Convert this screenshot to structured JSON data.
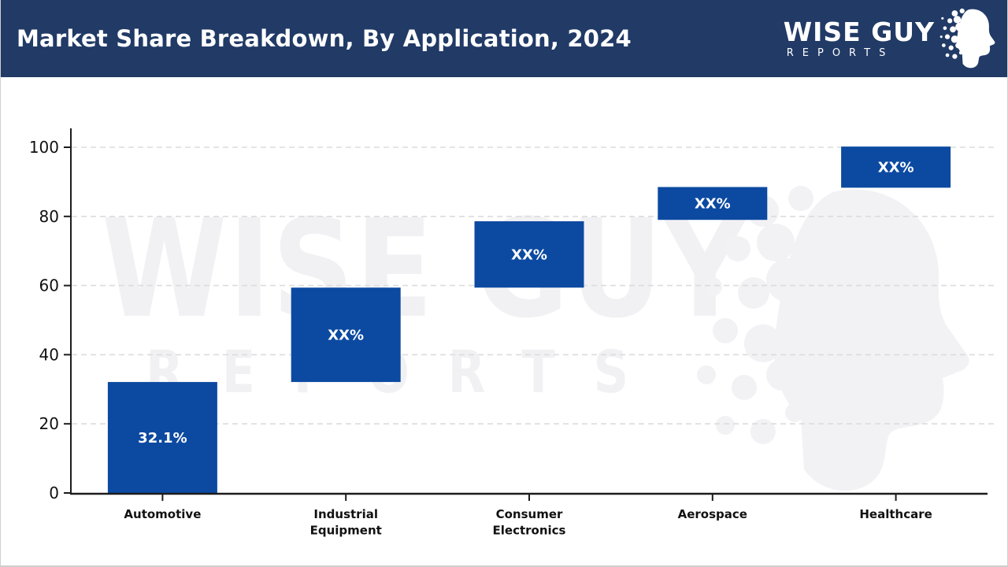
{
  "header": {
    "title": "Market Share Breakdown, By Application, 2024",
    "bg_color": "#213a66",
    "logo": {
      "line1": "WISE GUY",
      "line2": "REPORTS"
    }
  },
  "watermark": {
    "line1": "WISE GUY",
    "line2": "REPORTS"
  },
  "chart_data": {
    "type": "bar",
    "subtype": "waterfall",
    "title": "Market Share Breakdown, By Application, 2024",
    "xlabel": "",
    "ylabel": "",
    "categories": [
      "Automotive",
      "Industrial Equipment",
      "Consumer Electronics",
      "Aerospace",
      "Healthcare"
    ],
    "segments": [
      {
        "category": "Automotive",
        "start": 0,
        "end": 32.1,
        "display": "32.1%"
      },
      {
        "category": "Industrial Equipment",
        "start": 32.1,
        "end": 59.4,
        "display": "XX%"
      },
      {
        "category": "Consumer Electronics",
        "start": 59.4,
        "end": 78.6,
        "display": "XX%"
      },
      {
        "category": "Aerospace",
        "start": 79.0,
        "end": 88.5,
        "display": "XX%"
      },
      {
        "category": "Healthcare",
        "start": 88.3,
        "end": 100.2,
        "display": "XX%"
      }
    ],
    "ylim": [
      0,
      105
    ],
    "yticks": [
      0,
      20,
      40,
      60,
      80,
      100
    ],
    "grid": "horizontal-dashed",
    "legend": "none",
    "colors": {
      "bar": "#0c4aa1",
      "bar_label": "#ffffff",
      "axis": "#1c1c1c",
      "gridline": "#dcdcdc",
      "tick_label": "#111111"
    }
  }
}
